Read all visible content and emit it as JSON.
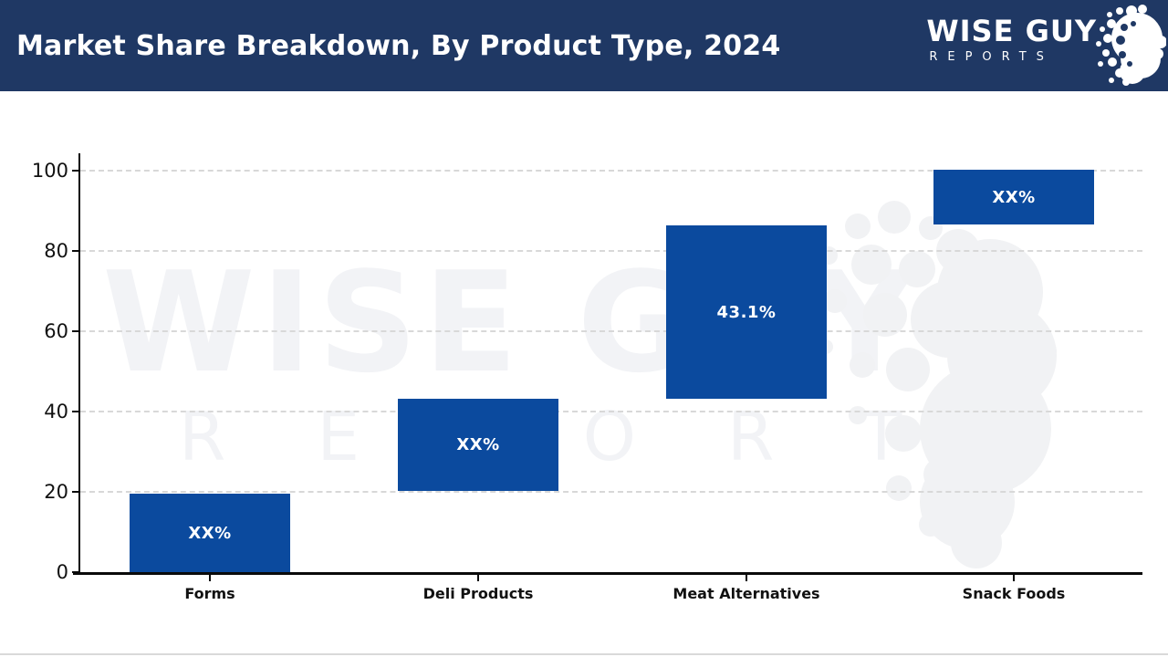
{
  "header": {
    "title": "Market Share Breakdown, By Product Type, 2024",
    "logo": {
      "line1": "WISE GUY",
      "line2": "REPORTS"
    }
  },
  "watermark": {
    "line1": "WISE GUY",
    "line2": "REPORTS"
  },
  "chart_data": {
    "type": "bar",
    "subtype": "waterfall",
    "title": "Market Share Breakdown, By Product Type, 2024",
    "categories": [
      "Forms",
      "Deli Products",
      "Meat Alternatives",
      "Snack Foods"
    ],
    "segments": [
      {
        "category": "Forms",
        "start": 0,
        "end": 19.5,
        "label": "XX%"
      },
      {
        "category": "Deli Products",
        "start": 20.2,
        "end": 43.2,
        "label": "XX%"
      },
      {
        "category": "Meat Alternatives",
        "start": 43.2,
        "end": 86.3,
        "label": "43.1%"
      },
      {
        "category": "Snack Foods",
        "start": 86.5,
        "end": 100.2,
        "label": "XX%"
      }
    ],
    "xlabel": "",
    "ylabel": "",
    "ylim": [
      0,
      105
    ],
    "yticks": [
      0,
      20,
      40,
      60,
      80,
      100
    ],
    "grid": "horizontal dashed",
    "legend": "none",
    "bar_color": "#0b4a9e",
    "bar_label_color": "#ffffff"
  },
  "colors": {
    "header_bg": "#1f3864",
    "bar": "#0b4a9e",
    "gridline": "#d8d8d8",
    "watermark": "#f2f3f6",
    "axis": "#0a0a0a"
  }
}
